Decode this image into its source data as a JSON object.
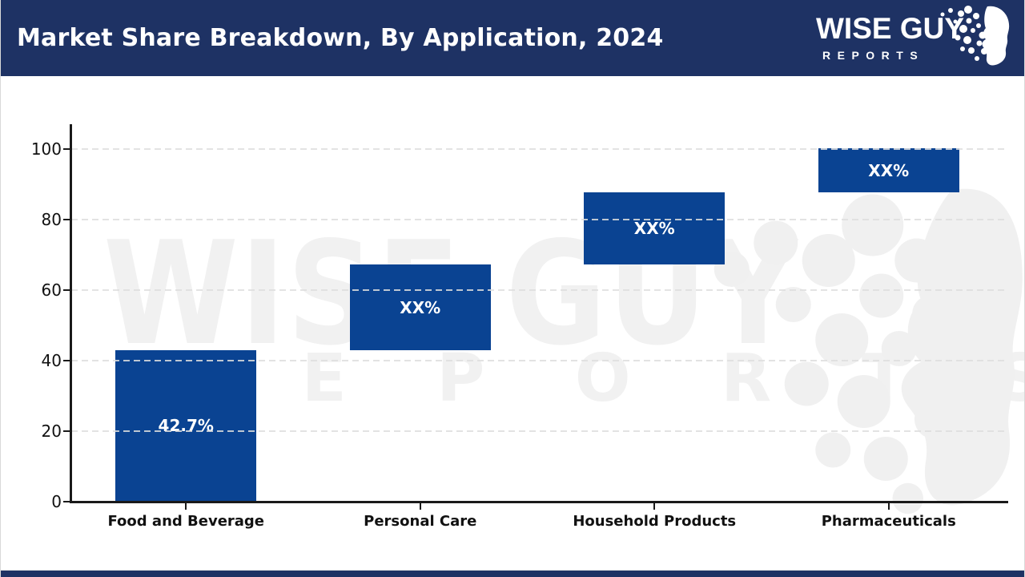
{
  "header": {
    "title": "Market Share Breakdown, By Application, 2024",
    "bg_color": "#1e3264",
    "logo": {
      "line1": "WISE GUY",
      "line2": "R E P O R T S"
    }
  },
  "watermark": {
    "line1": "WISE GUY",
    "line2": "R E P O R T S"
  },
  "chart_data": {
    "type": "bar",
    "subtype": "waterfall",
    "title": "Market Share Breakdown, By Application, 2024",
    "categories": [
      "Food and Beverage",
      "Personal Care",
      "Household Products",
      "Pharmaceuticals"
    ],
    "segments": [
      {
        "category": "Food and Beverage",
        "start": 0,
        "end": 42.7,
        "label": "42.7%"
      },
      {
        "category": "Personal Care",
        "start": 42.7,
        "end": 67,
        "label": "XX%"
      },
      {
        "category": "Household Products",
        "start": 67,
        "end": 87.5,
        "label": "XX%"
      },
      {
        "category": "Pharmaceuticals",
        "start": 87.5,
        "end": 100,
        "label": "XX%"
      }
    ],
    "xlabel": "",
    "ylabel": "",
    "ylim": [
      0,
      105
    ],
    "yticks": [
      0,
      20,
      40,
      60,
      80,
      100
    ],
    "grid": "dashed horizontal, drawn over bars",
    "legend": "none",
    "bar_color": "#0a4392",
    "bar_label_color": "#ffffff",
    "axis_color": "#1a1a1a"
  }
}
